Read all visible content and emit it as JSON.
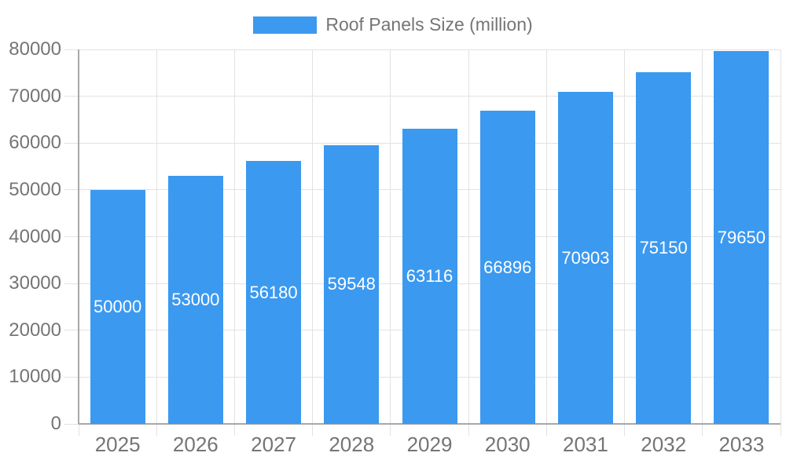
{
  "chart_data": {
    "type": "bar",
    "title": "Roof Panels Size (million)",
    "legend": [
      "Roof Panels Size (million)"
    ],
    "legend_position": "top",
    "categories": [
      "2025",
      "2026",
      "2027",
      "2028",
      "2029",
      "2030",
      "2031",
      "2032",
      "2033"
    ],
    "series": [
      {
        "name": "Roof Panels Size (million)",
        "values": [
          50000,
          53000,
          56180,
          59548,
          63116,
          66896,
          70903,
          75150,
          79650
        ]
      }
    ],
    "xlabel": "",
    "ylabel": "",
    "ylim": [
      0,
      80000
    ],
    "ytick_step": 10000,
    "yticks": [
      0,
      10000,
      20000,
      30000,
      40000,
      50000,
      60000,
      70000,
      80000
    ],
    "grid": true,
    "value_labels": "inside-center"
  },
  "colors": {
    "bar": "#3b99f0",
    "grid": "#e2e2e2",
    "axis": "#a8a8a8",
    "tick_label": "#757575",
    "legend_text": "#757575",
    "bar_label": "#ffffff",
    "background": "#ffffff"
  }
}
